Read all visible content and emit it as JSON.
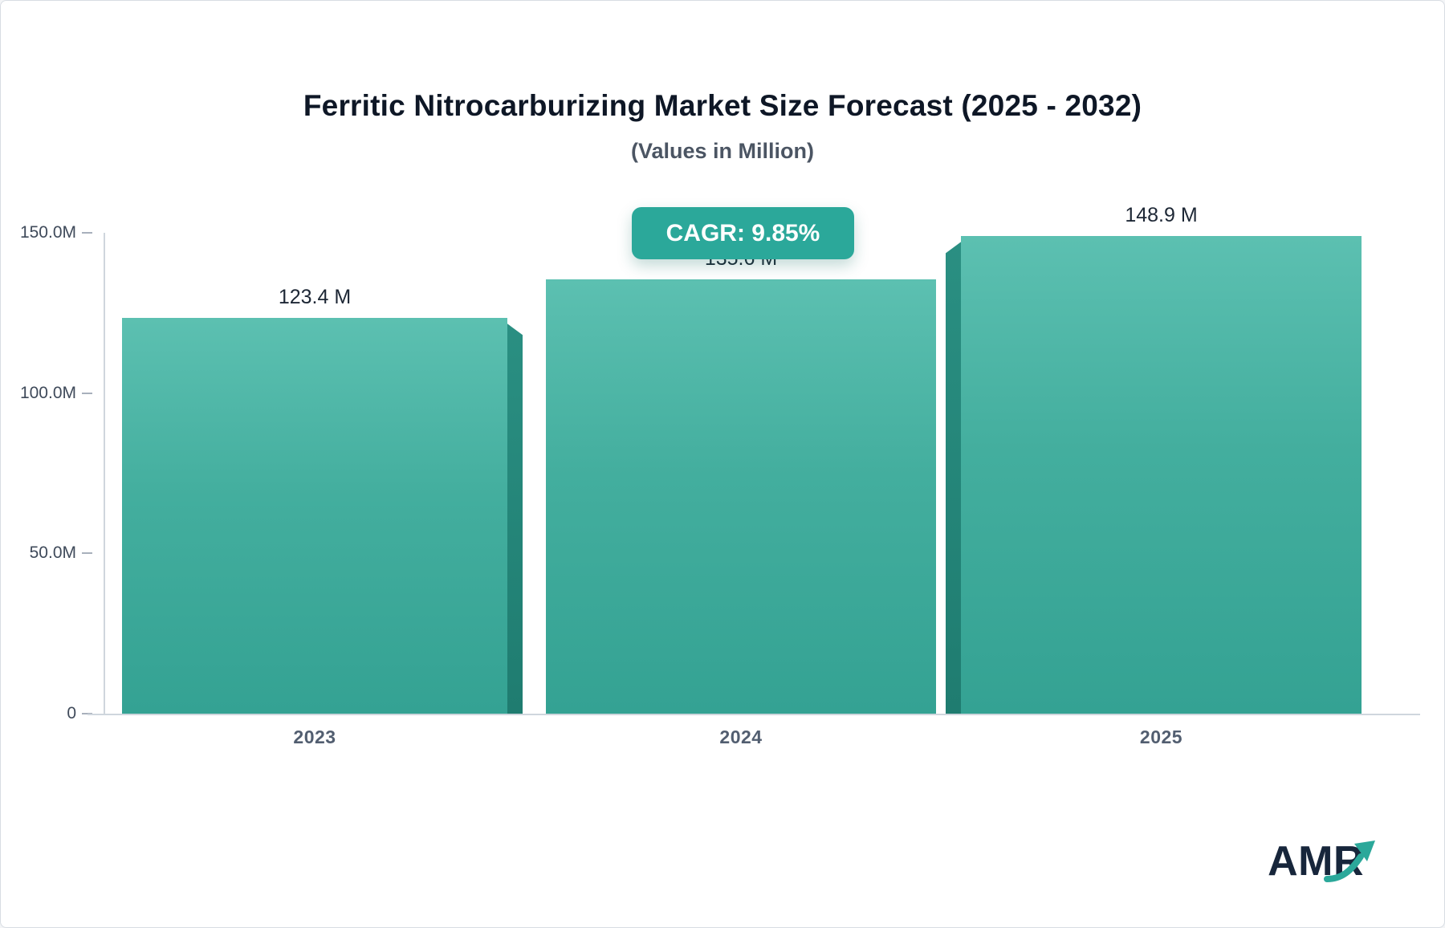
{
  "title": "Ferritic Nitrocarburizing Market Size Forecast (2025 - 2032)",
  "subtitle": "(Values in Million)",
  "badge": {
    "label": "CAGR: 9.85%"
  },
  "logo": {
    "text": "AMR"
  },
  "colors": {
    "accent": "#2ba89a",
    "bar_top": "#5cc0b1",
    "bar_bottom": "#34a293",
    "bar_side": "#1f7c70",
    "axis_line": "#cfd6dd",
    "title_text": "#0e1726",
    "subtitle_text": "#4b5563"
  },
  "chart_data": {
    "type": "bar",
    "title": "Ferritic Nitrocarburizing Market Size Forecast (2025 - 2032)",
    "subtitle": "(Values in Million)",
    "categories": [
      "2023",
      "2024",
      "2025"
    ],
    "values": [
      123.4,
      135.6,
      148.9
    ],
    "value_labels": [
      "123.4 M",
      "135.6 M",
      "148.9 M"
    ],
    "xlabel": "",
    "ylabel": "",
    "ylim": [
      0,
      150
    ],
    "yticks": [
      "150.0M",
      "100.0M",
      "50.0M",
      "0"
    ],
    "grid": false,
    "legend": "none",
    "annotation": "CAGR: 9.85%"
  }
}
